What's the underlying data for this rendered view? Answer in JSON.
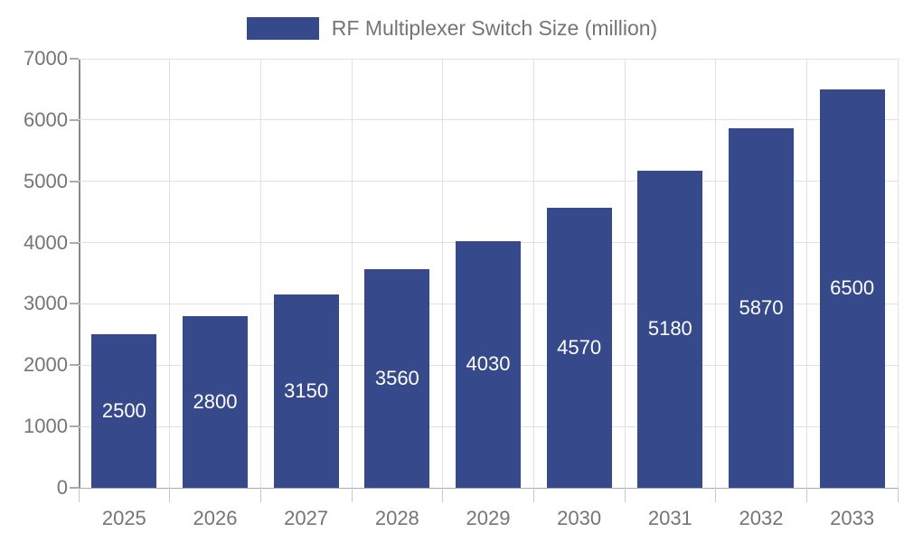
{
  "legend": {
    "label": "RF Multiplexer Switch Size (million)"
  },
  "chart_data": {
    "type": "bar",
    "title": "RF Multiplexer Switch Size (million)",
    "categories": [
      "2025",
      "2026",
      "2027",
      "2028",
      "2029",
      "2030",
      "2031",
      "2032",
      "2033"
    ],
    "values": [
      2500,
      2800,
      3150,
      3560,
      4030,
      4570,
      5180,
      5870,
      6500
    ],
    "xlabel": "",
    "ylabel": "",
    "ylim": [
      0,
      7000
    ],
    "ytick_step": 1000,
    "yticks": [
      "0",
      "1000",
      "2000",
      "3000",
      "4000",
      "5000",
      "6000",
      "7000"
    ],
    "grid": true,
    "legend_position": "top-center",
    "value_labels": "inside-center"
  },
  "colors": {
    "bar": "#36498B",
    "value_label": "#ffffff",
    "axis_text": "#757575",
    "gridline": "#e1e1e1",
    "axis_line": "#8a8a8a",
    "background": "#ffffff"
  }
}
